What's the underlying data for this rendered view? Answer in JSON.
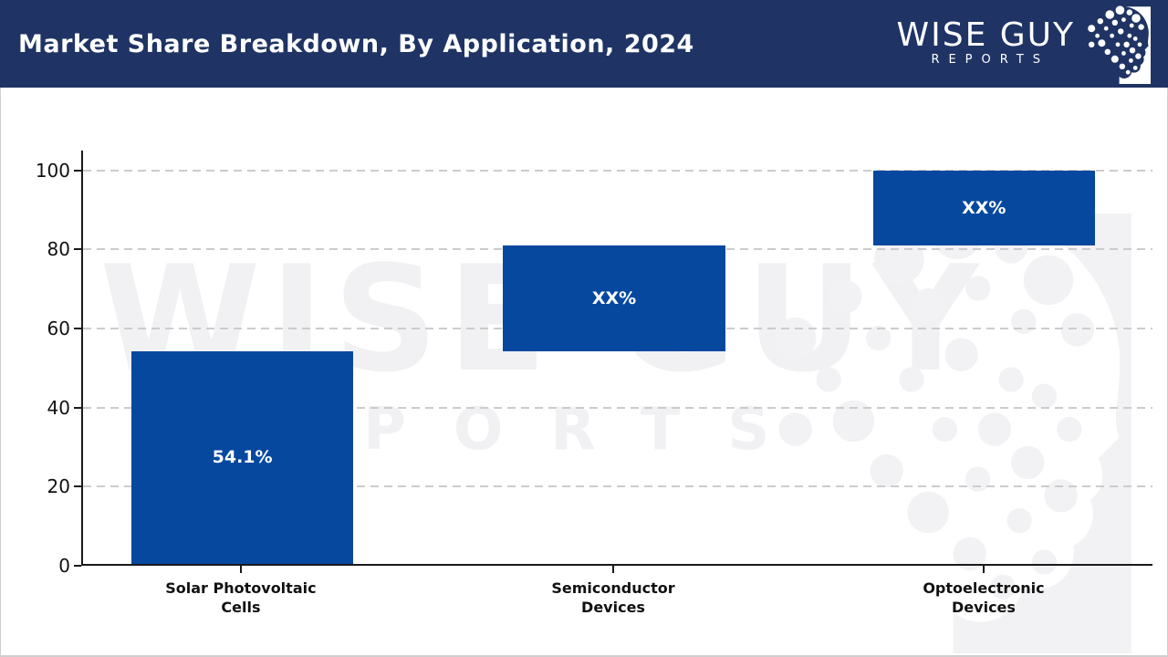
{
  "header": {
    "title": "Market Share Breakdown, By Application, 2024",
    "background_color": "#1f3464",
    "logo": {
      "line1": "WISE GUY",
      "line2": "REPORTS"
    }
  },
  "watermark": {
    "line1": "WISE GUY",
    "line2": "REPORTS"
  },
  "chart_data": {
    "type": "bar",
    "subtype": "waterfall",
    "title": "Market Share Breakdown, By Application, 2024",
    "categories": [
      "Solar Photovoltaic Cells",
      "Semiconductor Devices",
      "Optoelectronic Devices"
    ],
    "categories_lines": [
      [
        "Solar Photovoltaic",
        "Cells"
      ],
      [
        "Semiconductor",
        "Devices"
      ],
      [
        "Optoelectronic",
        "Devices"
      ]
    ],
    "segments": [
      {
        "category": "Solar Photovoltaic Cells",
        "start": 0,
        "end": 54.1,
        "label": "54.1%"
      },
      {
        "category": "Semiconductor Devices",
        "start": 54.1,
        "end": 81,
        "label": "XX%"
      },
      {
        "category": "Optoelectronic Devices",
        "start": 81,
        "end": 100,
        "label": "XX%"
      }
    ],
    "bar_color": "#05489e",
    "label_color": "#ffffff",
    "ylim": [
      0,
      105
    ],
    "yticks": [
      0,
      20,
      40,
      60,
      80,
      100
    ],
    "xlabel": "",
    "ylabel": "",
    "grid": "horizontal-dashed",
    "legend": "none"
  }
}
